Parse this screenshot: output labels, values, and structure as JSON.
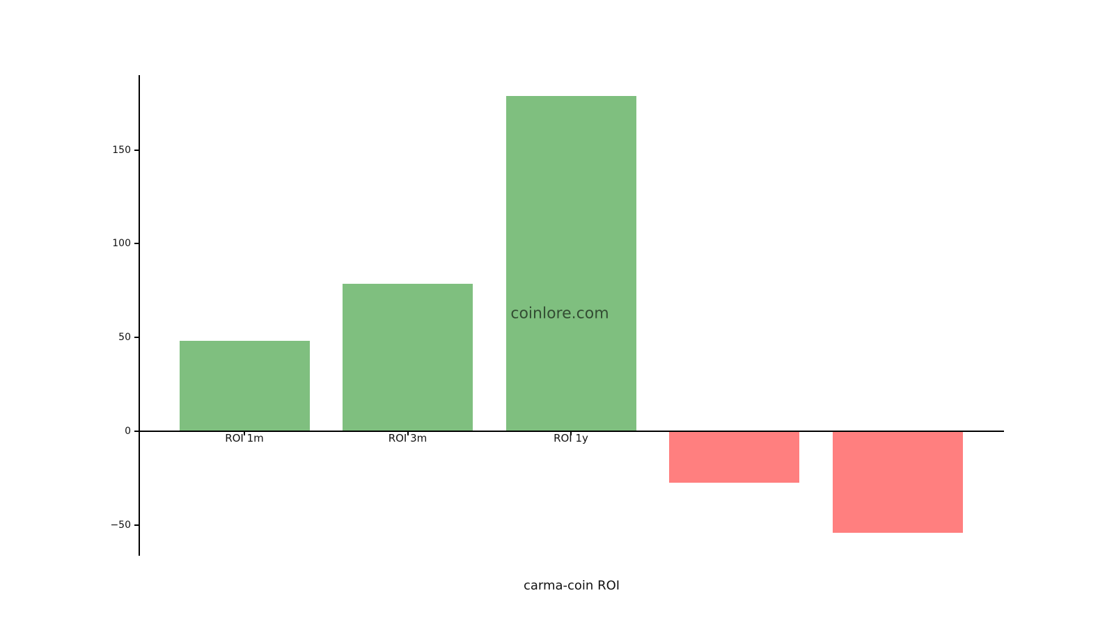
{
  "chart_data": {
    "type": "bar",
    "title": "carma-coin ROI",
    "title_position": "bottom",
    "watermark": "coinlore.com",
    "categories": [
      "ROI 1m",
      "ROI 3m",
      "ROI 1y",
      "",
      ""
    ],
    "values": [
      48.2,
      78.8,
      178.7,
      -27.3,
      -54.3
    ],
    "bar_colors": [
      "#7fbf7f",
      "#7fbf7f",
      "#7fbf7f",
      "#ff7f7f",
      "#ff7f7f"
    ],
    "positive_color": "#7fbf7f",
    "negative_color": "#ff7f7f",
    "axis_color": "#000000",
    "background_color": "#ffffff",
    "watermark_color": "#3c3c3c",
    "xlabel": "",
    "ylabel": "",
    "yticks": [
      150,
      100,
      50,
      0,
      -50
    ],
    "ytick_labels": [
      "150",
      "100",
      "50",
      "0",
      "−50"
    ],
    "ylim": [
      -66,
      190
    ],
    "grid": false,
    "legend": null
  }
}
